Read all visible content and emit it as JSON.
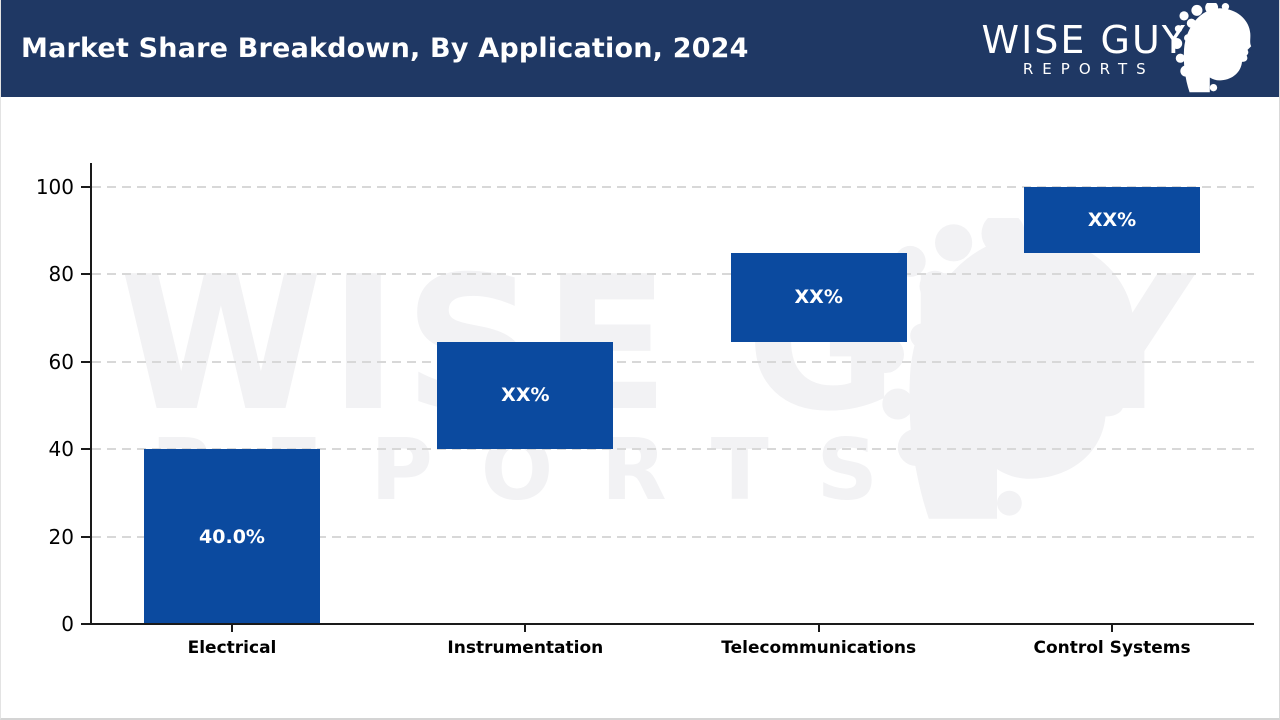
{
  "header": {
    "title": "Market Share Breakdown, By Application, 2024",
    "logo": {
      "line1": "WISE GUY",
      "line2": "REPORTS"
    }
  },
  "watermark": {
    "line1": "WISE GUY",
    "line2": "REPORTS"
  },
  "colors": {
    "header_bg": "#1f3864",
    "bar": "#0b4a9f",
    "grid": "#d8d8d8",
    "axis": "#1a1a1a",
    "bar_label_text": "#ffffff",
    "watermark": "#f2f2f4"
  },
  "chart_data": {
    "type": "bar",
    "subtype": "waterfall",
    "title": "Market Share Breakdown, By Application, 2024",
    "categories": [
      "Electrical",
      "Instrumentation",
      "Telecommunications",
      "Control Systems"
    ],
    "segments": [
      {
        "category": "Electrical",
        "start": 0,
        "end": 40,
        "label": "40.0%"
      },
      {
        "category": "Instrumentation",
        "start": 40,
        "end": 64.5,
        "label": "XX%"
      },
      {
        "category": "Telecommunications",
        "start": 64.5,
        "end": 84.8,
        "label": "XX%"
      },
      {
        "category": "Control Systems",
        "start": 84.8,
        "end": 100,
        "label": "XX%"
      }
    ],
    "xlabel": "",
    "ylabel": "",
    "ylim": [
      0,
      100
    ],
    "yticks": [
      0,
      20,
      40,
      60,
      80,
      100
    ],
    "grid": "horizontal-dashed",
    "legend": "none"
  }
}
